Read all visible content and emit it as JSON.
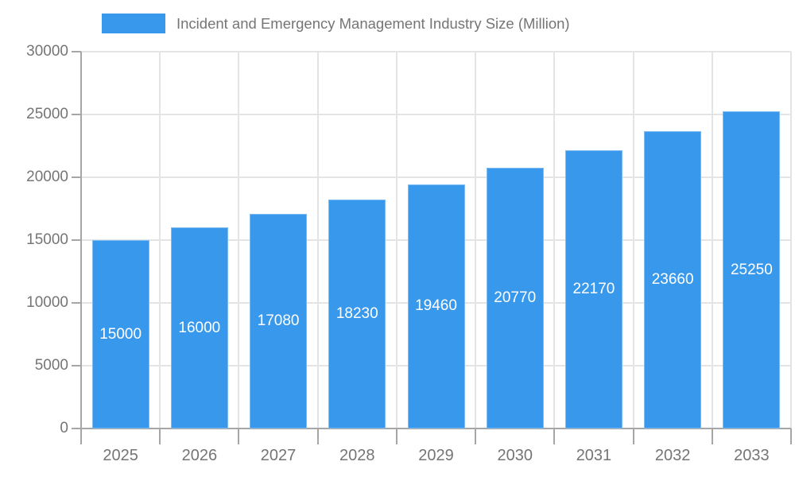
{
  "chart_data": {
    "type": "bar",
    "title": "Incident and Emergency Management Industry Size (Million)",
    "categories": [
      "2025",
      "2026",
      "2027",
      "2028",
      "2029",
      "2030",
      "2031",
      "2032",
      "2033"
    ],
    "values": [
      15000,
      16000,
      17080,
      18230,
      19460,
      20770,
      22170,
      23660,
      25250
    ],
    "xlabel": "",
    "ylabel": "",
    "ylim": [
      0,
      30000
    ],
    "yticks": [
      0,
      5000,
      10000,
      15000,
      20000,
      25000,
      30000
    ],
    "grid": true,
    "legend_position": "top",
    "legend_entries": [
      "Incident and Emergency Management Industry Size (Million)"
    ],
    "value_labels": "inside-center-white"
  },
  "colors": {
    "bar": "#3899EC",
    "bar_edge": "#7CBCF3",
    "grid": "#E4E4E4",
    "axis": "#A6A6A6",
    "tick_label": "#757575",
    "value_label": "#FFFFFF",
    "background": "#FFFFFF"
  }
}
